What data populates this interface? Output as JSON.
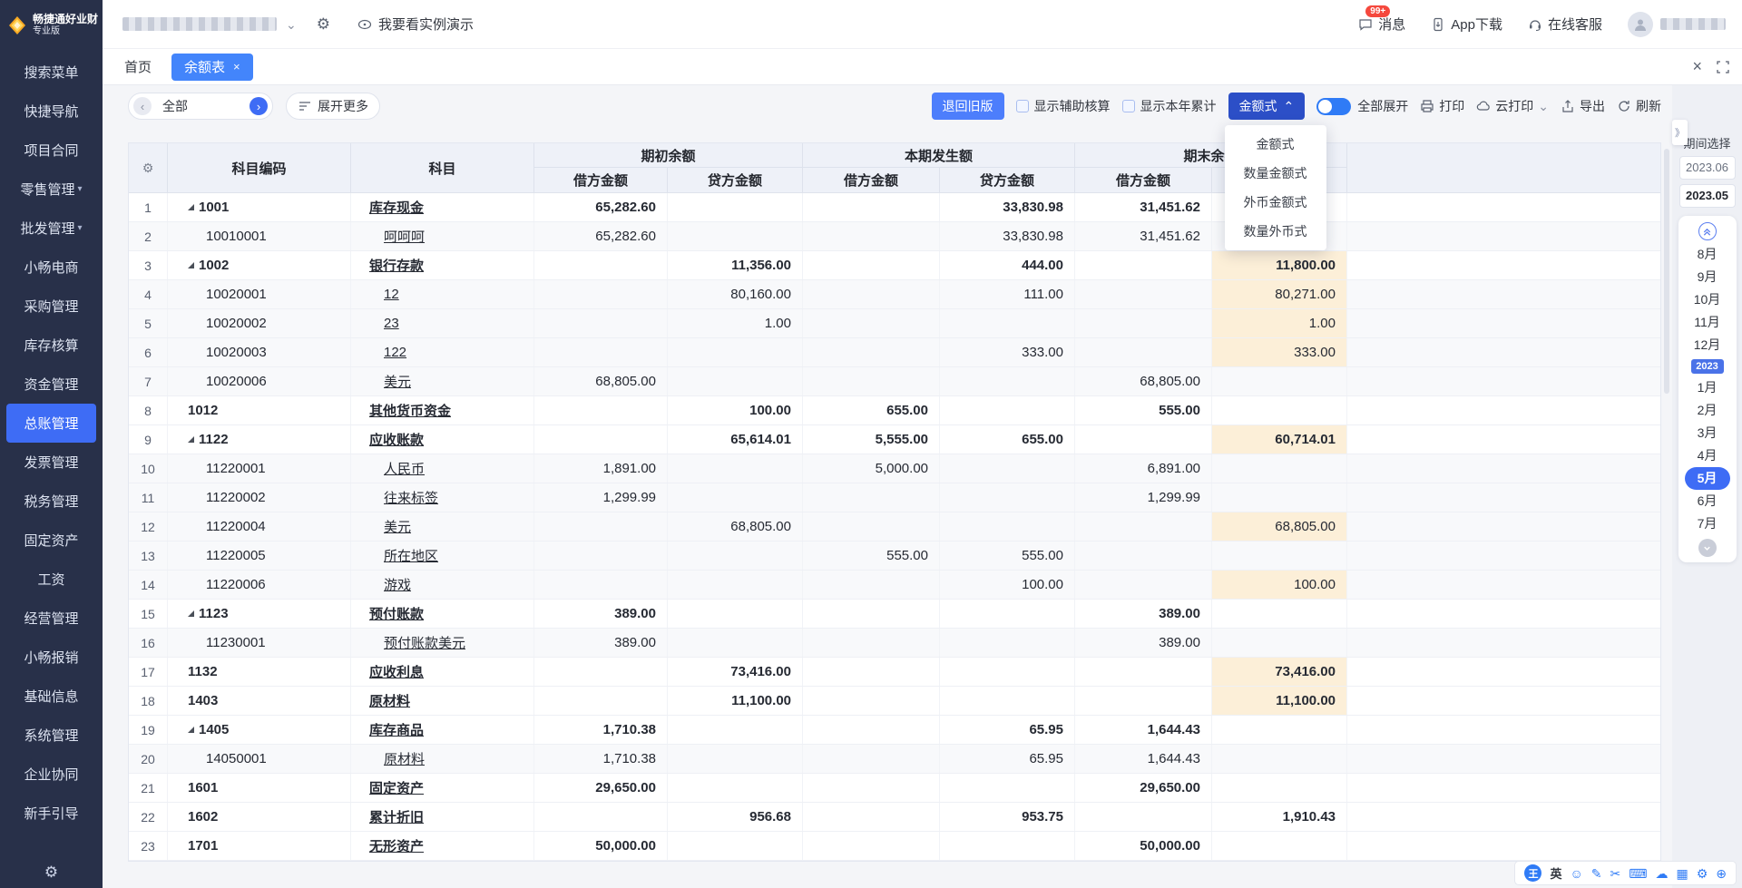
{
  "icons": {
    "gear": "⚙",
    "close": "×",
    "chevron_down": "⌄",
    "chevron_up": "⌃",
    "caret_down": "▾",
    "arrow_left": "‹",
    "arrow_right": "›",
    "handle_right": "》"
  },
  "sidebar": {
    "logo_title": "畅捷通好业财",
    "logo_sub": "专业版",
    "items": [
      {
        "label": "搜索菜单"
      },
      {
        "label": "快捷导航"
      },
      {
        "label": "项目合同"
      },
      {
        "label": "零售管理",
        "caret": true
      },
      {
        "label": "批发管理",
        "caret": true
      },
      {
        "label": "小畅电商"
      },
      {
        "label": "采购管理"
      },
      {
        "label": "库存核算"
      },
      {
        "label": "资金管理"
      },
      {
        "label": "总账管理",
        "active": true
      },
      {
        "label": "发票管理"
      },
      {
        "label": "税务管理"
      },
      {
        "label": "固定资产"
      },
      {
        "label": "工资"
      },
      {
        "label": "经营管理"
      },
      {
        "label": "小畅报销"
      },
      {
        "label": "基础信息"
      },
      {
        "label": "系统管理"
      },
      {
        "label": "企业协同"
      },
      {
        "label": "新手引导"
      }
    ]
  },
  "topbar": {
    "demo_label": "我要看实例演示",
    "messages_label": "消息",
    "messages_badge": "99+",
    "app_download_label": "App下载",
    "support_label": "在线客服"
  },
  "tabs": [
    {
      "label": "首页"
    },
    {
      "label": "余额表",
      "active": true,
      "closable": true
    }
  ],
  "toolbar": {
    "scope_label": "全部",
    "expand_more_label": "展开更多",
    "back_old_label": "退回旧版",
    "show_aux_label": "显示辅助核算",
    "show_ytd_label": "显示本年累计",
    "format_label": "金额式",
    "expand_all_label": "全部展开",
    "print_label": "打印",
    "cloud_print_label": "云打印",
    "export_label": "导出",
    "refresh_label": "刷新"
  },
  "format_menu": {
    "items": [
      "金额式",
      "数量金额式",
      "外币金额式",
      "数量外币式"
    ]
  },
  "table": {
    "header": {
      "code": "科目编码",
      "subject": "科目",
      "opening": "期初余额",
      "period": "本期发生额",
      "ending": "期末余额",
      "debit": "借方金额",
      "credit": "贷方金额"
    },
    "rows": [
      {
        "seq": 1,
        "code": "1001",
        "subject": "库存现金",
        "level": 0,
        "expand": true,
        "c1": "65,282.60",
        "c4": "33,830.98",
        "c5": "31,451.62"
      },
      {
        "seq": 2,
        "code": "10010001",
        "subject": "呵呵呵",
        "level": 1,
        "c1": "65,282.60",
        "c4": "33,830.98",
        "c5": "31,451.62"
      },
      {
        "seq": 3,
        "code": "1002",
        "subject": "银行存款",
        "level": 0,
        "expand": true,
        "c2": "11,356.00",
        "c4": "444.00",
        "c6": "11,800.00",
        "hl": true
      },
      {
        "seq": 4,
        "code": "10020001",
        "subject": "12",
        "level": 1,
        "c2": "80,160.00",
        "c4": "111.00",
        "c6": "80,271.00",
        "hl": true
      },
      {
        "seq": 5,
        "code": "10020002",
        "subject": "23",
        "level": 1,
        "c2": "1.00",
        "c6": "1.00",
        "hl": true
      },
      {
        "seq": 6,
        "code": "10020003",
        "subject": "122",
        "level": 1,
        "c4": "333.00",
        "c6": "333.00",
        "hl": true
      },
      {
        "seq": 7,
        "code": "10020006",
        "subject": "美元",
        "level": 1,
        "c1": "68,805.00",
        "c5": "68,805.00"
      },
      {
        "seq": 8,
        "code": "1012",
        "subject": "其他货币资金",
        "level": 0,
        "c2": "100.00",
        "c3": "655.00",
        "c5": "555.00"
      },
      {
        "seq": 9,
        "code": "1122",
        "subject": "应收账款",
        "level": 0,
        "expand": true,
        "c2": "65,614.01",
        "c3": "5,555.00",
        "c4": "655.00",
        "c6": "60,714.01",
        "hl": true
      },
      {
        "seq": 10,
        "code": "11220001",
        "subject": "人民币",
        "level": 1,
        "c1": "1,891.00",
        "c3": "5,000.00",
        "c5": "6,891.00"
      },
      {
        "seq": 11,
        "code": "11220002",
        "subject": "往来标签",
        "level": 1,
        "c1": "1,299.99",
        "c5": "1,299.99"
      },
      {
        "seq": 12,
        "code": "11220004",
        "subject": "美元",
        "level": 1,
        "c2": "68,805.00",
        "c6": "68,805.00",
        "hl": true
      },
      {
        "seq": 13,
        "code": "11220005",
        "subject": "所在地区",
        "level": 1,
        "c3": "555.00",
        "c4": "555.00"
      },
      {
        "seq": 14,
        "code": "11220006",
        "subject": "游戏",
        "level": 1,
        "c4": "100.00",
        "c6": "100.00",
        "hl": true
      },
      {
        "seq": 15,
        "code": "1123",
        "subject": "预付账款",
        "level": 0,
        "expand": true,
        "c1": "389.00",
        "c5": "389.00"
      },
      {
        "seq": 16,
        "code": "11230001",
        "subject": "预付账款美元",
        "level": 1,
        "c1": "389.00",
        "c5": "389.00"
      },
      {
        "seq": 17,
        "code": "1132",
        "subject": "应收利息",
        "level": 0,
        "c2": "73,416.00",
        "c6": "73,416.00",
        "hl": true
      },
      {
        "seq": 18,
        "code": "1403",
        "subject": "原材料",
        "level": 0,
        "c2": "11,100.00",
        "c6": "11,100.00",
        "hl": true
      },
      {
        "seq": 19,
        "code": "1405",
        "subject": "库存商品",
        "level": 0,
        "expand": true,
        "c1": "1,710.38",
        "c4": "65.95",
        "c5": "1,644.43"
      },
      {
        "seq": 20,
        "code": "14050001",
        "subject": "原材料",
        "level": 1,
        "c1": "1,710.38",
        "c4": "65.95",
        "c5": "1,644.43"
      },
      {
        "seq": 21,
        "code": "1601",
        "subject": "固定资产",
        "level": 0,
        "c1": "29,650.00",
        "c5": "29,650.00"
      },
      {
        "seq": 22,
        "code": "1602",
        "subject": "累计折旧",
        "level": 0,
        "c2": "956.68",
        "c4": "953.75",
        "c6": "1,910.43"
      },
      {
        "seq": 23,
        "code": "1701",
        "subject": "无形资产",
        "level": 0,
        "c1": "50,000.00",
        "c5": "50,000.00"
      }
    ]
  },
  "period_panel": {
    "handle": "》",
    "title": "期间选择",
    "periods": [
      "2023.06",
      "2023.05"
    ],
    "months": [
      {
        "label": "8月"
      },
      {
        "label": "9月"
      },
      {
        "label": "10月"
      },
      {
        "label": "11月"
      },
      {
        "label": "12月"
      },
      {
        "label": "2023",
        "badge": true
      },
      {
        "label": "1月"
      },
      {
        "label": "2月"
      },
      {
        "label": "3月"
      },
      {
        "label": "4月"
      },
      {
        "label": "5月",
        "selected": true
      },
      {
        "label": "6月"
      },
      {
        "label": "7月"
      }
    ]
  },
  "ime": {
    "primary": "王",
    "lang": "英",
    "icons": [
      {
        "name": "emoji-icon",
        "glyph": "☺"
      },
      {
        "name": "pen-icon",
        "glyph": "✎"
      },
      {
        "name": "scissors-icon",
        "glyph": "✂"
      },
      {
        "name": "keyboard-icon",
        "glyph": "⌨"
      },
      {
        "name": "cloud-icon",
        "glyph": "☁"
      },
      {
        "name": "skin-icon",
        "glyph": "▦"
      },
      {
        "name": "toolbox-icon",
        "glyph": "⚙"
      },
      {
        "name": "more-icon",
        "glyph": "⊕"
      }
    ]
  }
}
